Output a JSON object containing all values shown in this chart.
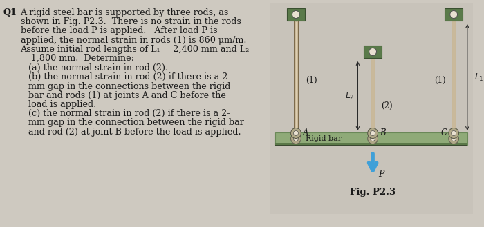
{
  "bg_color": "#cec9c0",
  "text_color": "#1a1a1a",
  "fig_bg": "#c8c3ba",
  "fig_label": "Fig. P2.3",
  "rod_color_light": "#c8b89a",
  "rod_color_dark": "#7a6848",
  "bar_color_top": "#8faa78",
  "bar_color_bot": "#5a7848",
  "bracket_color": "#5a7a4a",
  "bracket_edge": "#3a5030",
  "pin_outer": "#b0a888",
  "pin_inner": "#e8e0d0",
  "arrow_color": "#40a0d8",
  "dim_color": "#2a2a2a",
  "body_lines": [
    "A rigid steel bar is supported by three rods, as",
    "shown in Fig. P2.3.  There is no strain in the rods",
    "before the load P is applied.   After load P is",
    "applied, the normal strain in rods (1) is 860 μm/m.",
    "Assume initial rod lengths of L₁ = 2,400 mm and L₂",
    "= 1,800 mm.  Determine:"
  ],
  "sub_lines": [
    "(a) the normal strain in rod (2).",
    "(b) the normal strain in rod (2) if there is a 2-",
    "mm gap in the connections between the rigid",
    "bar and rods (1) at joints A and C before the",
    "load is applied.",
    "(c) the normal strain in rod (2) if there is a 2-",
    "mm gap in the connection between the rigid bar",
    "and rod (2) at joint B before the load is applied."
  ]
}
